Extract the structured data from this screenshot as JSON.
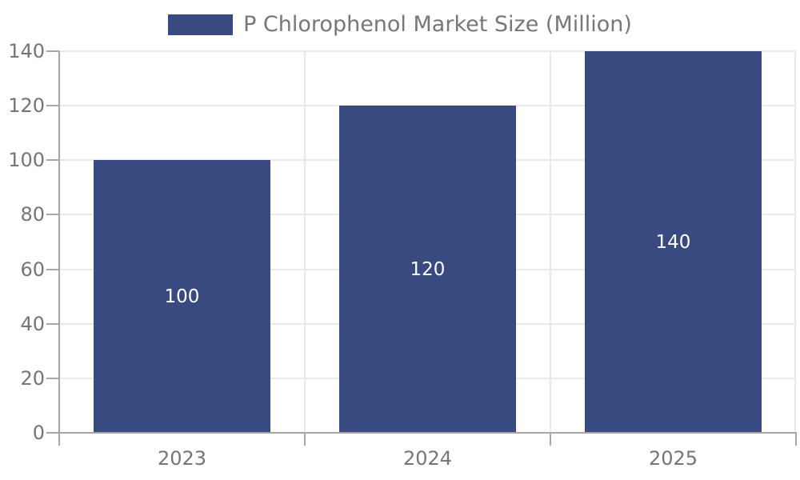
{
  "chart_data": {
    "type": "bar",
    "title": "P Chlorophenol Market Size (Million)",
    "categories": [
      "2023",
      "2024",
      "2025"
    ],
    "values": [
      100,
      120,
      140
    ],
    "xlabel": "",
    "ylabel": "",
    "ylim": [
      0,
      140
    ],
    "yticks": [
      0,
      20,
      40,
      60,
      80,
      100,
      120,
      140
    ],
    "grid": true,
    "legend_position": "top-center",
    "colors": {
      "bar": "#394A80",
      "data_label": "#FFFFFF",
      "axis_line": "#A6A6A6",
      "gridline": "#E9E9E9",
      "tick_label": "#757575",
      "legend_text": "#777777"
    }
  }
}
